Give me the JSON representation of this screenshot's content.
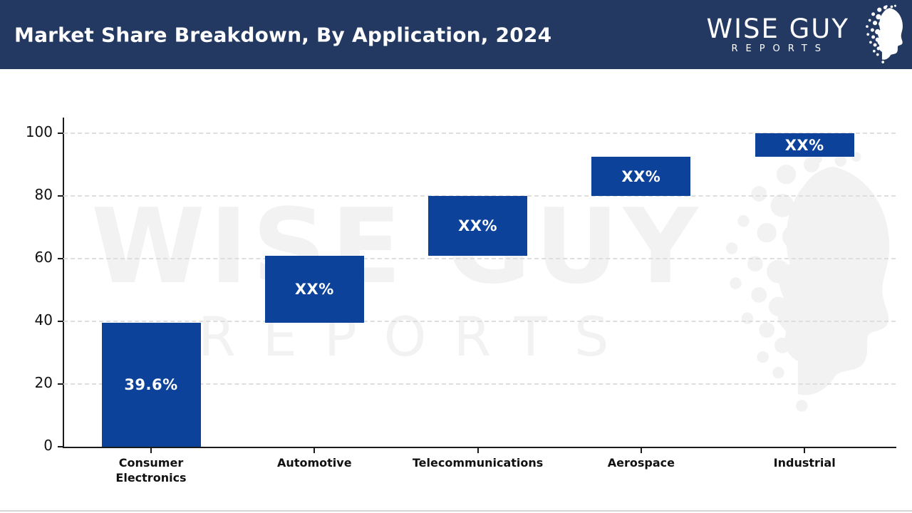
{
  "header": {
    "title": "Market Share Breakdown, By Application, 2024",
    "logo": {
      "line1": "WISE GUY",
      "line2": "REPORTS"
    }
  },
  "watermark": {
    "line1": "WISE GUY",
    "line2": "REPORTS"
  },
  "colors": {
    "header_bg": "#233962",
    "bar_fill": "#0c4299",
    "bar_label": "#ffffff",
    "gridline": "#dedede",
    "axis": "#1a1a1a",
    "watermark": "#f2f2f3"
  },
  "chart_data": {
    "type": "bar",
    "subtype": "waterfall",
    "title": "Market Share Breakdown, By Application, 2024",
    "categories": [
      "Consumer\nElectronics",
      "Automotive",
      "Telecommunications",
      "Aerospace",
      "Industrial"
    ],
    "segments": [
      {
        "start": 0,
        "end": 39.6,
        "label": "39.6%"
      },
      {
        "start": 39.6,
        "end": 61,
        "label": "XX%"
      },
      {
        "start": 61,
        "end": 80,
        "label": "XX%"
      },
      {
        "start": 80,
        "end": 92.5,
        "label": "XX%"
      },
      {
        "start": 92.5,
        "end": 100,
        "label": "XX%"
      }
    ],
    "values": [
      39.6,
      21.4,
      19,
      12.5,
      7.5
    ],
    "yticks": [
      0,
      20,
      40,
      60,
      80,
      100
    ],
    "ylim": [
      0,
      105
    ],
    "xlabel": "",
    "ylabel": "",
    "grid": "horizontal-dashed",
    "legend": "none"
  }
}
